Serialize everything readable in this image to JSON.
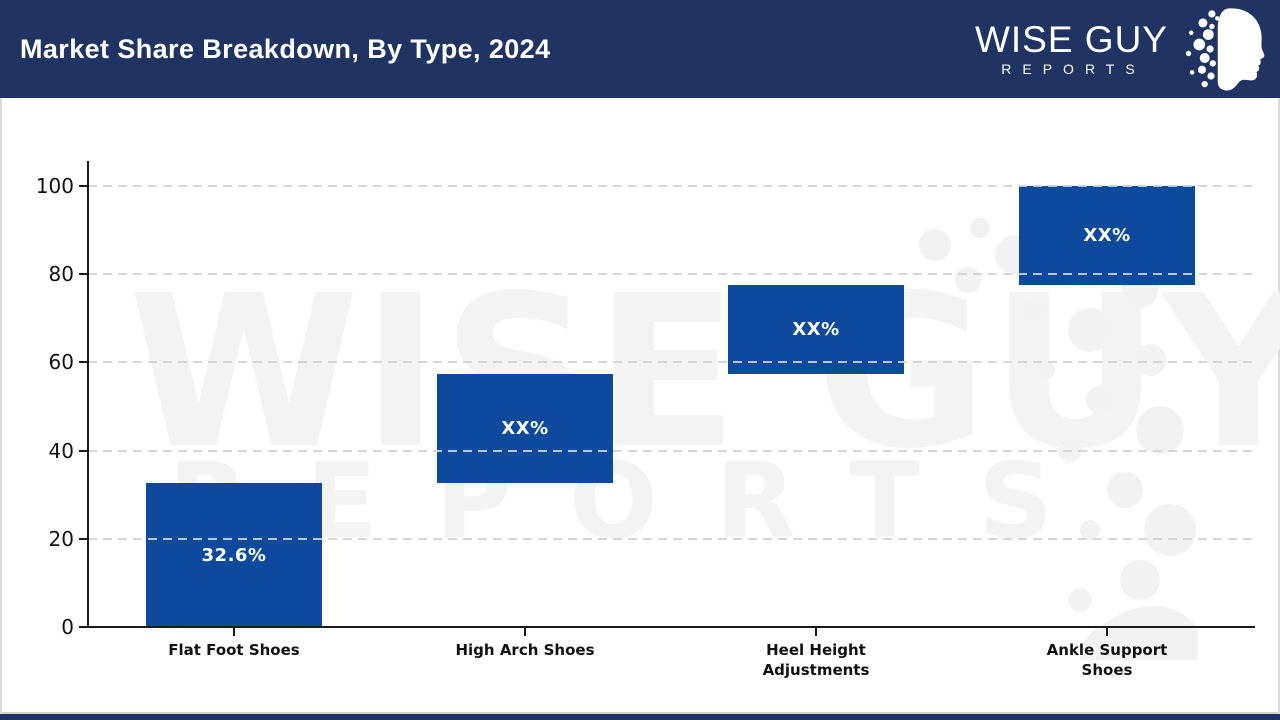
{
  "header": {
    "title": "Market Share Breakdown, By Type, 2024"
  },
  "logo": {
    "name": "WISE GUY",
    "sub": "REPORTS"
  },
  "watermark": {
    "line1": "WISE GUY",
    "line2": "REPORTS"
  },
  "colors": {
    "header_bg": "#1f3463",
    "bar_fill": "#0d4a9e",
    "gridline": "#d2d2d2",
    "watermark": "#f3f3f3"
  },
  "chart_data": {
    "type": "bar",
    "subtype": "waterfall",
    "title": "Market Share Breakdown, By Type, 2024",
    "xlabel": "",
    "ylabel": "",
    "ylim": [
      0,
      100
    ],
    "yticks": [
      0,
      20,
      40,
      60,
      80,
      100
    ],
    "grid": "horizontal-dashed",
    "legend": "none",
    "categories": [
      "Flat Foot Shoes",
      "High Arch Shoes",
      "Heel Height Adjustments",
      "Ankle Support Shoes"
    ],
    "bars": [
      {
        "category": "Flat Foot Shoes",
        "start": 0,
        "end": 32.6,
        "label": "32.6%"
      },
      {
        "category": "High Arch Shoes",
        "start": 32.6,
        "end": 57.4,
        "label": "XX%"
      },
      {
        "category": "Heel Height Adjustments",
        "start": 57.4,
        "end": 77.5,
        "label": "XX%"
      },
      {
        "category": "Ankle Support Shoes",
        "start": 77.5,
        "end": 100,
        "label": "XX%"
      }
    ]
  }
}
